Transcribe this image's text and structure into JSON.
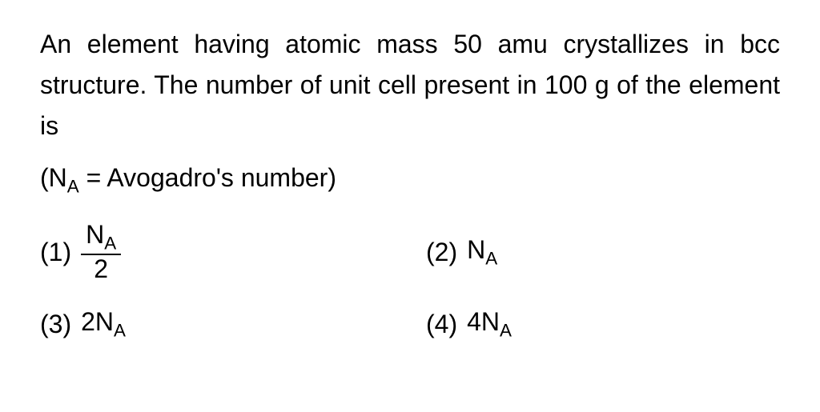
{
  "question": {
    "text": "An element having atomic mass 50 amu crystallizes in bcc structure. The number of unit cell present in 100 g of the element is",
    "note_prefix": "(N",
    "note_sub": "A",
    "note_suffix": " = Avogadro's number)"
  },
  "options": {
    "opt1": {
      "num": "(1)",
      "frac_num_sym": "N",
      "frac_num_sub": "A",
      "frac_den": "2"
    },
    "opt2": {
      "num": "(2)",
      "sym": "N",
      "sub": "A"
    },
    "opt3": {
      "num": "(3)",
      "coef": "2N",
      "sub": "A"
    },
    "opt4": {
      "num": "(4)",
      "coef": "4N",
      "sub": "A"
    }
  },
  "style": {
    "font_size_main": 32,
    "text_color": "#000000",
    "background": "#ffffff"
  }
}
